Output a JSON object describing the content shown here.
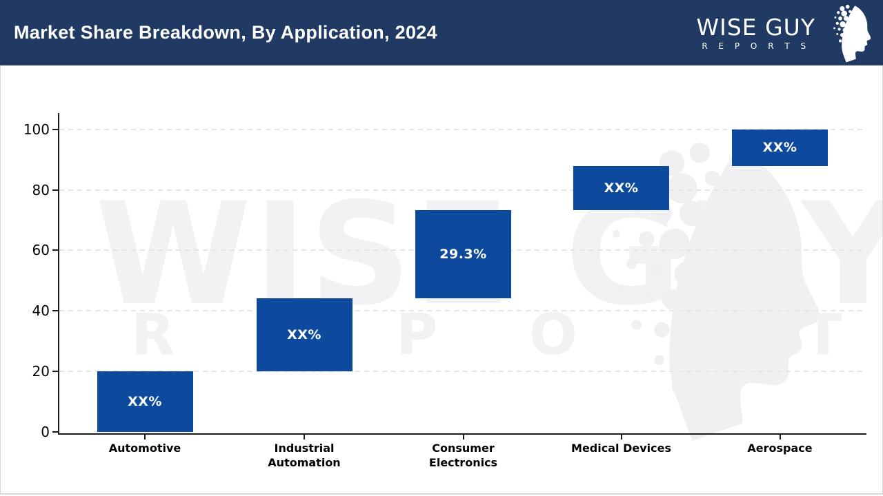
{
  "header": {
    "title": "Market Share Breakdown, By Application, 2024",
    "logo": {
      "name": "WISE GUY",
      "tagline": "R E P O R T S"
    }
  },
  "watermark": {
    "line1": "WISE GUY",
    "line2": "R E P O R T S"
  },
  "chart_data": {
    "type": "bar",
    "variant": "waterfall",
    "title": "Market Share Breakdown, By Application, 2024",
    "categories": [
      "Automotive",
      "Industrial Automation",
      "Consumer Electronics",
      "Medical Devices",
      "Aerospace"
    ],
    "bars": [
      {
        "category": "Automotive",
        "start": 0,
        "end": 20,
        "label": "XX%",
        "label_lines": [
          "Automotive"
        ]
      },
      {
        "category": "Industrial Automation",
        "start": 20,
        "end": 44.1,
        "label": "XX%",
        "label_lines": [
          "Industrial",
          "Automation"
        ]
      },
      {
        "category": "Consumer Electronics",
        "start": 44.1,
        "end": 73.4,
        "label": "29.3%",
        "label_lines": [
          "Consumer",
          "Electronics"
        ]
      },
      {
        "category": "Medical Devices",
        "start": 73.4,
        "end": 88,
        "label": "XX%",
        "label_lines": [
          "Medical Devices"
        ]
      },
      {
        "category": "Aerospace",
        "start": 88,
        "end": 100,
        "label": "XX%",
        "label_lines": [
          "Aerospace"
        ]
      }
    ],
    "y_ticks": [
      0,
      20,
      40,
      60,
      80,
      100
    ],
    "ylim": [
      0,
      105
    ],
    "xlabel": "",
    "ylabel": "",
    "grid": "horizontal-dashed",
    "legend": "none",
    "bar_color": "#0d4a9e",
    "bar_label_color": "#ffffff"
  },
  "colors": {
    "header_bg": "#203a63",
    "bar": "#0d4a9e",
    "axis": "#1a1a1a",
    "grid": "#e5e5e5",
    "watermark": "#f2f2f4"
  }
}
